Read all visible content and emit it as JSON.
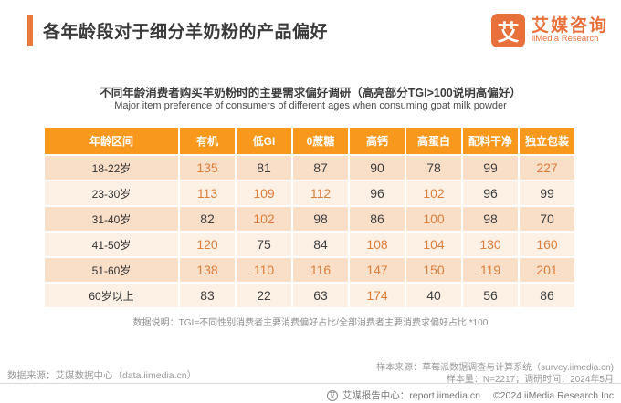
{
  "page": {
    "title": "各年龄段对于细分羊奶粉的产品偏好",
    "logo": {
      "mark": "艾",
      "name_cn": "艾媒咨询",
      "name_en": "iiMedia Research"
    },
    "subtitle_cn": "不同年龄消费者购买羊奶粉时的主要需求偏好调研（高亮部分TGI>100说明高偏好）",
    "subtitle_en": "Major item preference of consumers of different ages when consuming goat milk powder",
    "note": "数据说明：TGI=不同性别消费者主要消费偏好占比/全部消费者主要消费求偏好占比 *100",
    "source_left": "数据来源：艾媒数据中心（data.iimedia.cn）",
    "sample_source": "样本来源：草莓派数据调查与计算系统（survey.iimedia.cn)",
    "sample_info": "样本量：N=2217；调研时间：2024年5月",
    "footer_report": "艾媒报告中心：report.iimedia.cn",
    "footer_copyright": "©2024  iiMedia Research Inc"
  },
  "colors": {
    "accent_orange": "#e97a3d",
    "header_orange": "#f8981d",
    "row_dark": "#fadfc8",
    "row_light": "#fdf1e6",
    "highlight_text": "#d97e3d",
    "logo_orange": "#e8713b"
  },
  "chart_data": {
    "type": "table",
    "title": "不同年龄消费者购买羊奶粉时的主要需求偏好调研（高亮部分TGI>100说明高偏好）",
    "subtitle_en": "Major item preference of consumers of different ages when consuming goat milk powder",
    "highlight_rule": "TGI>100 highlighted in orange",
    "columns": [
      "年龄区间",
      "有机",
      "低GI",
      "0蔗糖",
      "高钙",
      "高蛋白",
      "配料干净",
      "独立包装"
    ],
    "rows": [
      {
        "age": "18-22岁",
        "values": [
          135,
          81,
          87,
          90,
          78,
          99,
          227
        ],
        "highlight": [
          true,
          false,
          false,
          false,
          false,
          false,
          true
        ]
      },
      {
        "age": "23-30岁",
        "values": [
          113,
          109,
          112,
          96,
          102,
          96,
          99
        ],
        "highlight": [
          true,
          true,
          true,
          false,
          true,
          false,
          false
        ]
      },
      {
        "age": "31-40岁",
        "values": [
          82,
          102,
          98,
          86,
          100,
          98,
          70
        ],
        "highlight": [
          false,
          true,
          false,
          false,
          true,
          false,
          false
        ]
      },
      {
        "age": "41-50岁",
        "values": [
          120,
          75,
          84,
          108,
          104,
          130,
          160
        ],
        "highlight": [
          true,
          false,
          false,
          true,
          true,
          true,
          true
        ]
      },
      {
        "age": "51-60岁",
        "values": [
          138,
          110,
          116,
          147,
          150,
          119,
          201
        ],
        "highlight": [
          true,
          true,
          true,
          true,
          true,
          true,
          true
        ]
      },
      {
        "age": "60岁以上",
        "values": [
          83,
          22,
          63,
          174,
          40,
          56,
          86
        ],
        "highlight": [
          false,
          false,
          false,
          true,
          false,
          false,
          false
        ]
      }
    ]
  }
}
